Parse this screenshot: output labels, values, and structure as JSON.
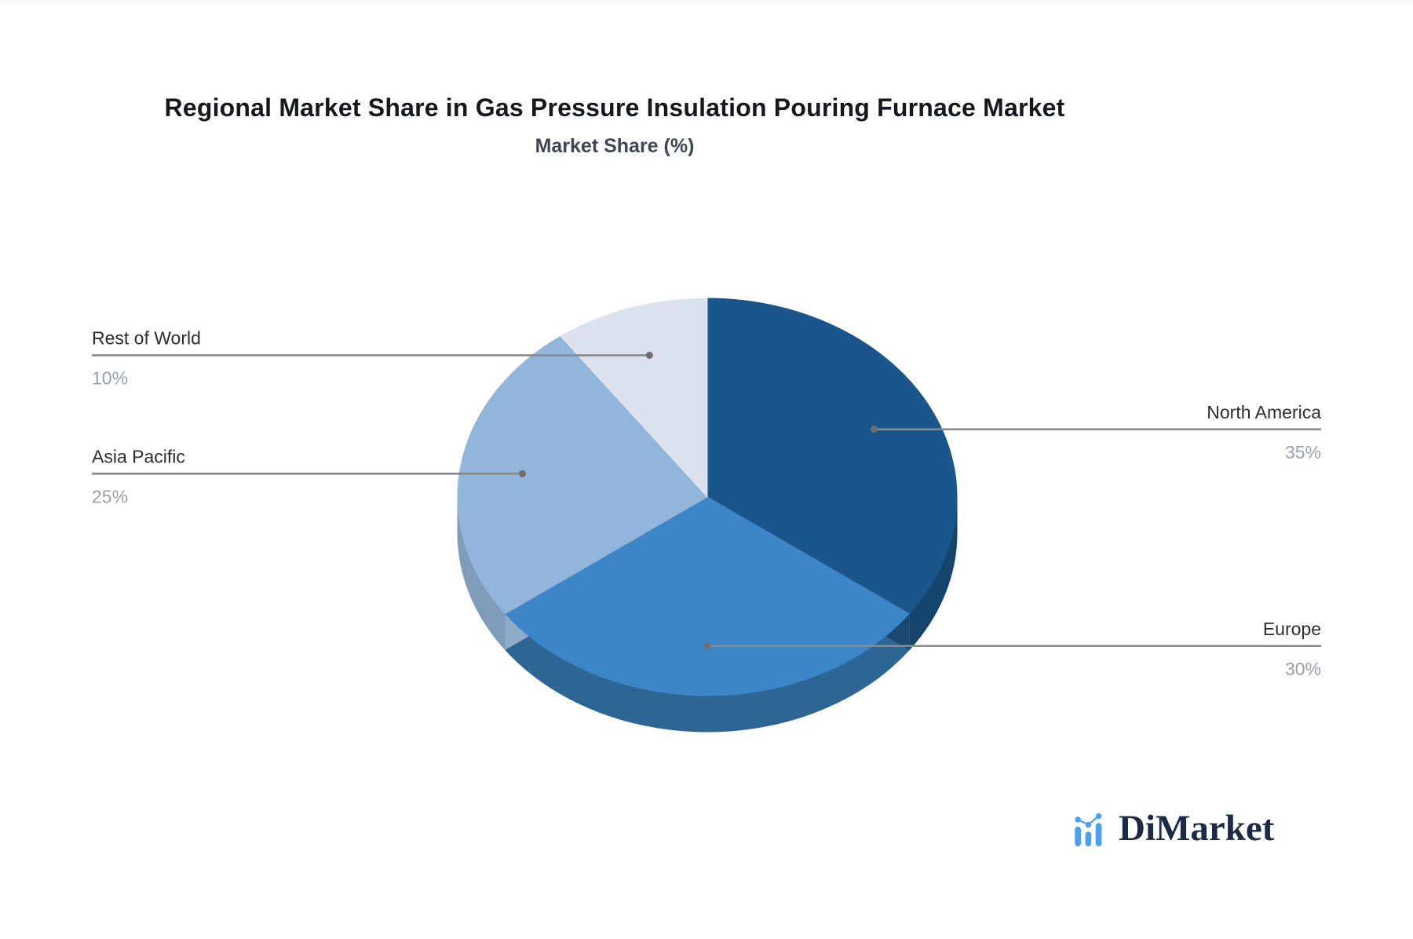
{
  "chart_data": {
    "type": "pie",
    "style": "3d",
    "title": "Regional Market Share in Gas Pressure Insulation Pouring Furnace Market",
    "subtitle": "Market Share (%)",
    "unit": "%",
    "start_angle": "12 o'clock, clockwise",
    "legend": "none",
    "label_style": "callout",
    "categories": [
      "North America",
      "Europe",
      "Asia Pacific",
      "Rest of World"
    ],
    "values": [
      35,
      30,
      25,
      10
    ],
    "slices": [
      {
        "label": "North America",
        "value": 35,
        "pct_label": "35%",
        "color": "#1A568C",
        "side_color": "#15456D",
        "label_side": "right"
      },
      {
        "label": "Europe",
        "value": 30,
        "pct_label": "30%",
        "color": "#3C86C8",
        "side_color": "#2D6595",
        "label_side": "right"
      },
      {
        "label": "Asia Pacific",
        "value": 25,
        "pct_label": "25%",
        "color": "#92B5DC",
        "side_color": "#7F9CBB",
        "label_side": "left"
      },
      {
        "label": "Rest of World",
        "value": 10,
        "pct_label": "10%",
        "color": "#DDE3EE",
        "side_color": "#C3CEDC",
        "label_side": "left"
      }
    ],
    "effect_colors": {
      "base": "#2D6595",
      "right_wall": "#1C486F",
      "left_wall": "#8FACC9"
    },
    "connector_color": "#8A8A8A",
    "connector_dot_color": "#6F6F6F",
    "label_color": "#2D2D2D",
    "pct_color": "#9AA0A8"
  },
  "branding": {
    "name": "DiMarket",
    "icon": "bar-chart-trend-icon",
    "icon_color": "#4BA0F2",
    "text_color": "#1C2B45"
  }
}
